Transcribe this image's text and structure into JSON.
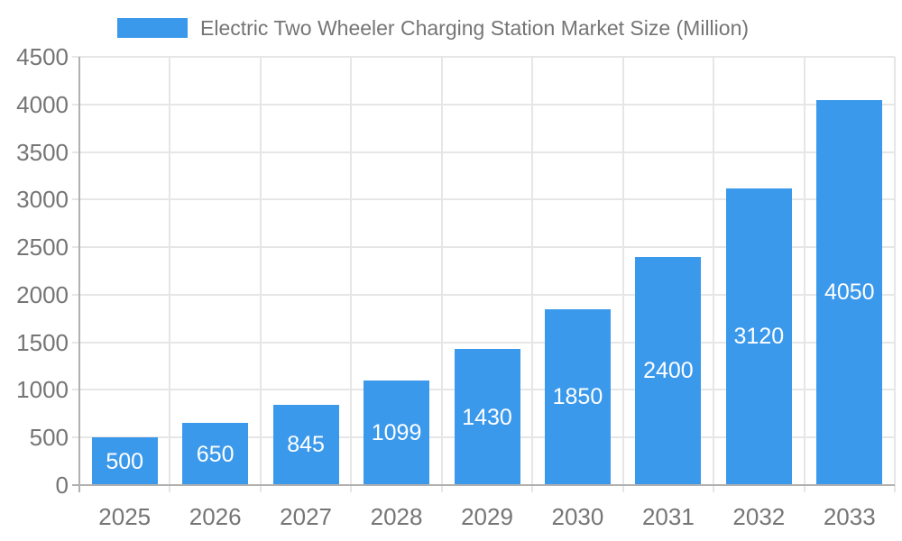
{
  "chart_data": {
    "type": "bar",
    "title": "Electric Two Wheeler Charging Station Market Size (Million)",
    "categories": [
      "2025",
      "2026",
      "2027",
      "2028",
      "2029",
      "2030",
      "2031",
      "2032",
      "2033"
    ],
    "values": [
      500,
      650,
      845,
      1099,
      1430,
      1850,
      2400,
      3120,
      4050
    ],
    "xlabel": "",
    "ylabel": "",
    "ylim": [
      0,
      4500
    ],
    "yticks": [
      0,
      500,
      1000,
      1500,
      2000,
      2500,
      3000,
      3500,
      4000,
      4500
    ],
    "grid": true,
    "legend_position": "top",
    "value_label_position": "inside-center",
    "colors": {
      "bar": "#3b99ec",
      "gridline": "#e6e6e6",
      "axis": "#b0b0b0",
      "tick_label": "#757575",
      "legend_label": "#757575",
      "value_label": "#ffffff",
      "background": "#ffffff"
    }
  }
}
